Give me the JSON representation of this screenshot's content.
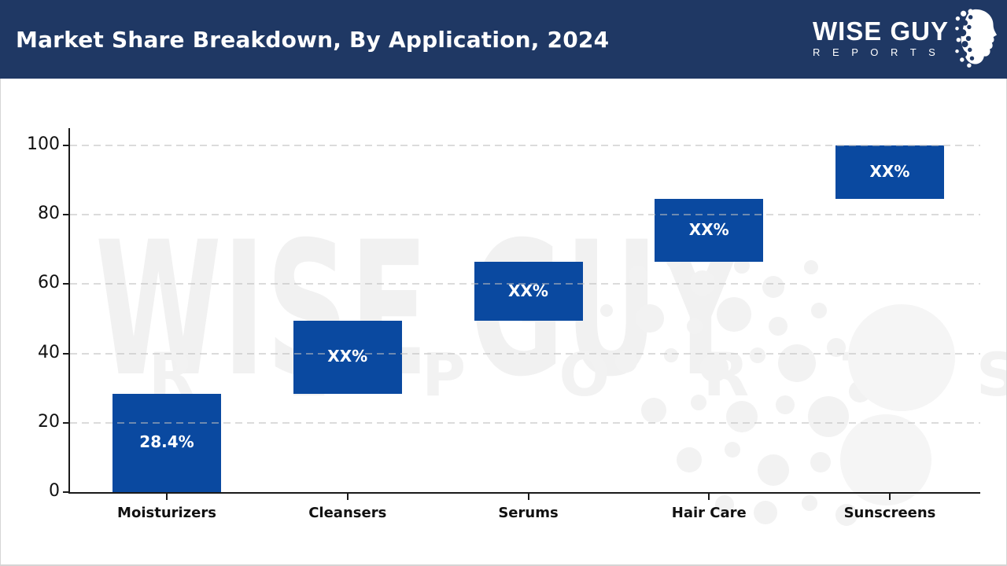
{
  "header": {
    "title": "Market Share Breakdown, By Application, 2024",
    "logo": {
      "line1": "WISE GUY",
      "line2": "R E P O R T S"
    }
  },
  "watermark": {
    "line1": "WISE GUY",
    "line2": "R E P O R T S"
  },
  "chart_data": {
    "type": "bar",
    "subtype": "waterfall-floating-bars",
    "title": "Market Share Breakdown, By Application, 2024",
    "categories": [
      "Moisturizers",
      "Cleansers",
      "Serums",
      "Hair Care",
      "Sunscreens"
    ],
    "series": [
      {
        "name": "Market share (%)",
        "starts": [
          0,
          28.4,
          49.4,
          66.4,
          84.5
        ],
        "ends": [
          28.4,
          49.4,
          66.4,
          84.5,
          100
        ],
        "labels": [
          "28.4%",
          "XX%",
          "XX%",
          "XX%",
          "XX%"
        ]
      }
    ],
    "ylim": [
      0,
      100
    ],
    "yticks": [
      0,
      20,
      40,
      60,
      80,
      100
    ],
    "grid": "horizontal-dashed",
    "legend": "none",
    "bar_color": "#0A49A0",
    "bar_label_color": "#FFFFFF"
  },
  "colors": {
    "header_bg": "#1F3864",
    "bar_blue": "#0A49A0",
    "grid_gray": "#C8C8C8",
    "axis_black": "#1A1A1A",
    "watermark_gray": "#F1F1F1"
  }
}
